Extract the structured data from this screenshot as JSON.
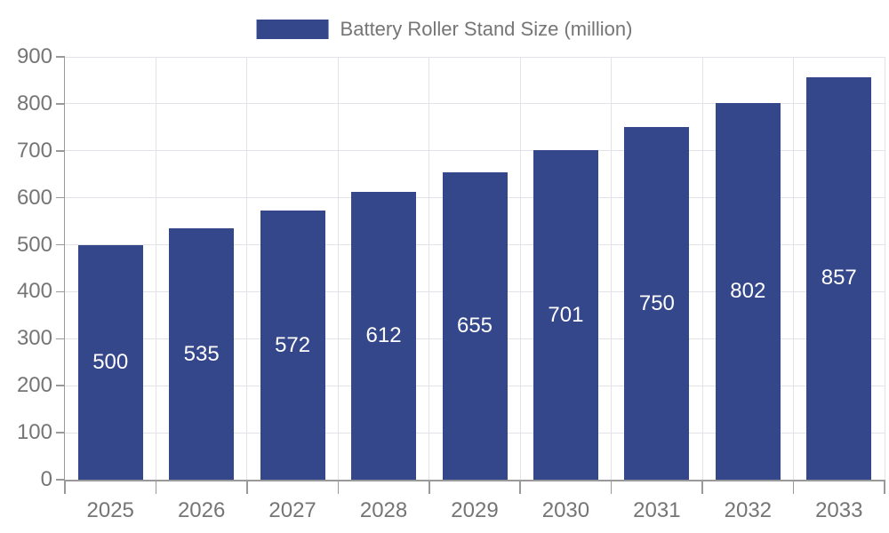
{
  "legend": {
    "label": "Battery Roller Stand Size (million)"
  },
  "chart_data": {
    "type": "bar",
    "title": "Battery Roller Stand Size (million)",
    "categories": [
      "2025",
      "2026",
      "2027",
      "2028",
      "2029",
      "2030",
      "2031",
      "2032",
      "2033"
    ],
    "values": [
      500,
      535,
      572,
      612,
      655,
      701,
      750,
      802,
      857
    ],
    "xlabel": "",
    "ylabel": "",
    "ylim": [
      0,
      900
    ],
    "yticks": [
      0,
      100,
      200,
      300,
      400,
      500,
      600,
      700,
      800,
      900
    ],
    "grid": true,
    "legend_position": "top-center",
    "bar_label_position": "inside-center",
    "colors": {
      "bar": "#35478B",
      "bar_label": "#FFFFFF",
      "axis_line": "#999999",
      "tick_label": "#757575",
      "gridline": "#E2E3E8",
      "legend_text": "#757575",
      "background": "#FFFFFF"
    }
  }
}
